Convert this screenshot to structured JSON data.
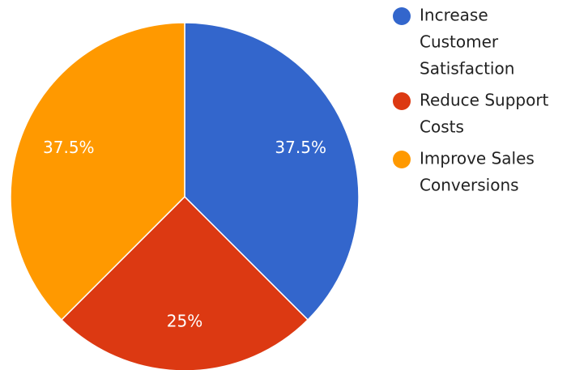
{
  "chart_data": {
    "type": "pie",
    "categories": [
      "Increase Customer Satisfaction",
      "Reduce Support Costs",
      "Improve Sales Conversions"
    ],
    "values": [
      37.5,
      25,
      37.5
    ],
    "data_labels": [
      "37.5%",
      "25%",
      "37.5%"
    ],
    "colors": [
      "#3366cc",
      "#dc3912",
      "#ff9900"
    ],
    "legend": {
      "position": "right",
      "entries": [
        {
          "label": "Increase Customer Satisfaction",
          "lines": [
            "Increase",
            "Customer",
            "Satisfaction"
          ],
          "color": "#3366cc"
        },
        {
          "label": "Reduce Support Costs",
          "lines": [
            "Reduce Support",
            "Costs"
          ],
          "color": "#dc3912"
        },
        {
          "label": "Improve Sales Conversions",
          "lines": [
            "Improve Sales",
            "Conversions"
          ],
          "color": "#ff9900"
        }
      ]
    }
  }
}
